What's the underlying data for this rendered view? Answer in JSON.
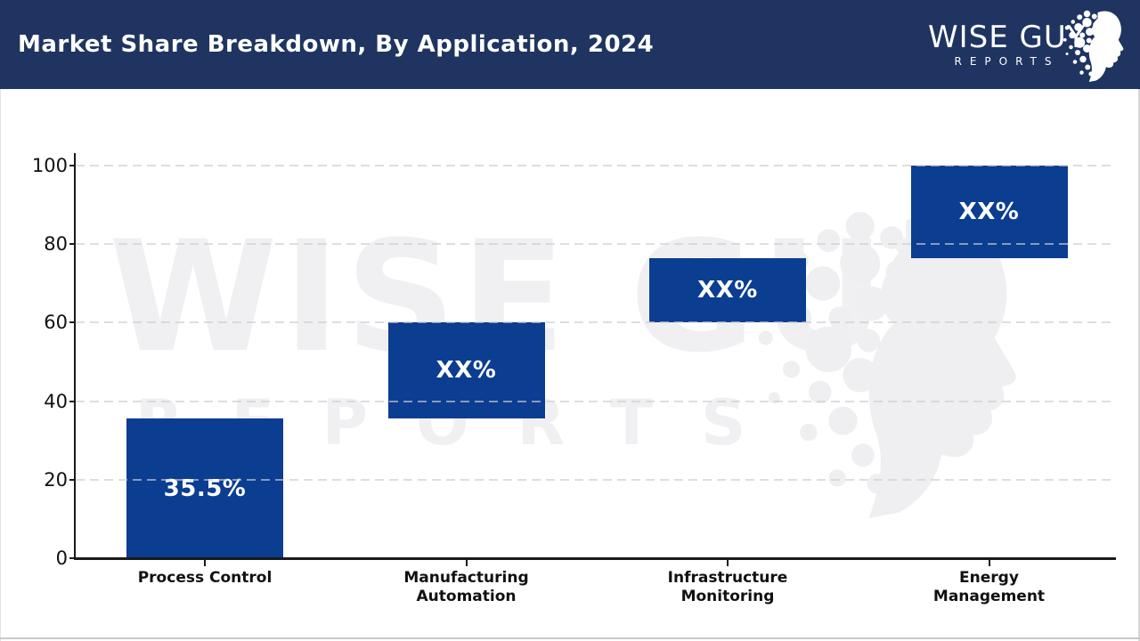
{
  "header": {
    "title": "Market Share Breakdown, By Application, 2024",
    "bg_color": "#1f3460",
    "logo": {
      "wordmark": "WISE GUY",
      "sub": "REPORTS"
    }
  },
  "watermark": {
    "wordmark": "WISE GUY",
    "sub": "REPORTS"
  },
  "chart_data": {
    "type": "bar",
    "subtype": "waterfall",
    "title": "Market Share Breakdown, By Application, 2024",
    "xlabel": "",
    "ylabel": "",
    "ylim": [
      0,
      100
    ],
    "yticks": [
      0,
      20,
      40,
      60,
      80,
      100
    ],
    "grid": {
      "axis": "y",
      "style": "dashed",
      "color": "#d9d9d9"
    },
    "legend": "none",
    "bar_color": "#0b3d91",
    "value_label_color": "#ffffff",
    "axis_color": "#1a1a1a",
    "categories": [
      "Process Control",
      "Manufacturing Automation",
      "Infrastructure Monitoring",
      "Energy Management"
    ],
    "segments": [
      {
        "category": "Process Control",
        "start": 0,
        "end": 35.5,
        "label": "35.5%"
      },
      {
        "category": "Manufacturing Automation",
        "start": 35.5,
        "end": 60,
        "label": "XX%"
      },
      {
        "category": "Infrastructure Monitoring",
        "start": 60,
        "end": 76.5,
        "label": "XX%"
      },
      {
        "category": "Energy Management",
        "start": 76.5,
        "end": 100,
        "label": "XX%"
      }
    ]
  }
}
